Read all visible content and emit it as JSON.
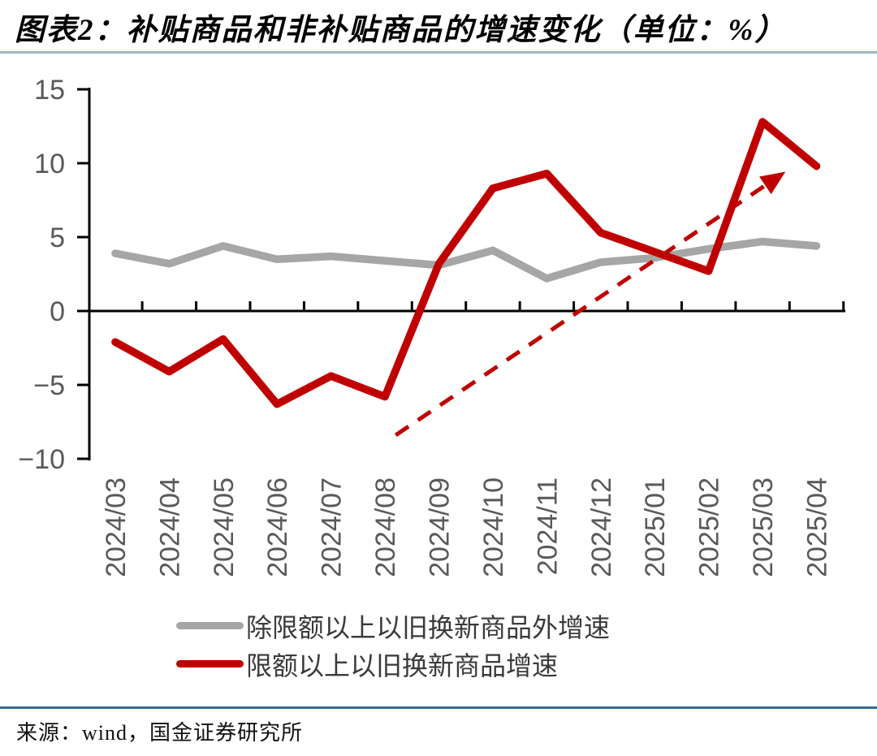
{
  "title": "图表2：补贴商品和非补贴商品的增速变化（单位：%）",
  "source": "来源：wind，国金证券研究所",
  "colors": {
    "red": "#C00000",
    "gray": "#A6A6A6",
    "axis": "#000000",
    "tick_label": "#595959",
    "top_rule": "#9cb8c8",
    "bottom_rule": "#336b90"
  },
  "legend": [
    {
      "label": "除限额以上以旧换新商品外增速",
      "color_key": "gray"
    },
    {
      "label": "限额以上以旧换新商品增速",
      "color_key": "red"
    }
  ],
  "chart_data": {
    "type": "line",
    "title": "图表2：补贴商品和非补贴商品的增速变化（单位：%）",
    "xlabel": "",
    "ylabel": "",
    "unit": "%",
    "grid": false,
    "legend_position": "bottom",
    "ylim": [
      -10,
      15
    ],
    "yticks": [
      15,
      10,
      5,
      0,
      -5,
      -10
    ],
    "ytick_labels": [
      "15",
      "10",
      "5",
      "0",
      "−5",
      "−10"
    ],
    "categories": [
      "2024/03",
      "2024/04",
      "2024/05",
      "2024/06",
      "2024/07",
      "2024/08",
      "2024/09",
      "2024/10",
      "2024/11",
      "2024/12",
      "2025/01",
      "2025/02",
      "2025/03",
      "2025/04"
    ],
    "series": [
      {
        "name": "除限额以上以旧换新商品外增速",
        "color": "#A6A6A6",
        "values": [
          3.9,
          3.2,
          4.4,
          3.5,
          3.7,
          3.4,
          3.1,
          4.1,
          2.2,
          3.3,
          3.6,
          4.2,
          4.7,
          4.4
        ]
      },
      {
        "name": "限额以上以旧换新商品增速",
        "color": "#C00000",
        "values": [
          -2.1,
          -4.1,
          -1.9,
          -6.3,
          -4.4,
          -5.8,
          3.2,
          8.3,
          9.3,
          5.3,
          4.0,
          2.7,
          12.8,
          9.8
        ]
      }
    ],
    "annotation_arrow": {
      "style": "dashed",
      "color": "#C00000",
      "from_index": 5.2,
      "from_value": -8.4,
      "to_index": 12.05,
      "to_value": 8.5
    }
  }
}
